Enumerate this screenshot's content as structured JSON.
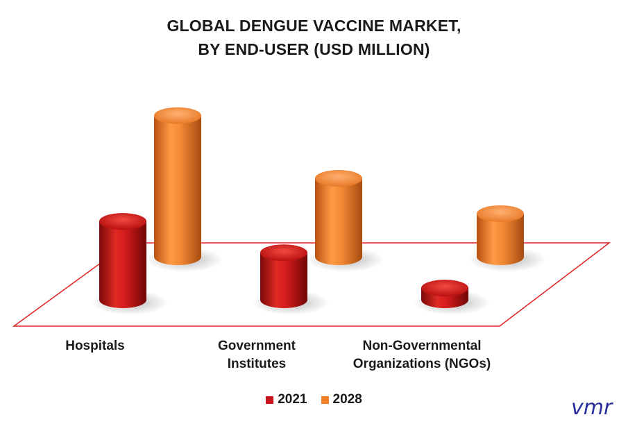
{
  "title_line1": "GLOBAL DENGUE VACCINE MARKET,",
  "title_line2": "BY END-USER (USD MILLION)",
  "chart_data": {
    "type": "bar",
    "categories": [
      "Hospitals",
      "Government Institutes",
      "Non-Governmental Organizations (NGOs)"
    ],
    "category_lines": [
      [
        "Hospitals"
      ],
      [
        "Government",
        "Institutes"
      ],
      [
        "Non-Governmental",
        "Organizations (NGOs)"
      ]
    ],
    "series": [
      {
        "name": "2021",
        "values": [
          100,
          60,
          15
        ],
        "color": "#c8141b"
      },
      {
        "name": "2028",
        "values": [
          180,
          100,
          55
        ],
        "color": "#f07f2a"
      }
    ],
    "ylim": [
      0,
      200
    ],
    "grid": false,
    "legend": "bottom-center"
  },
  "logo": {
    "text": "vmr",
    "color": "#2a2e9a"
  }
}
